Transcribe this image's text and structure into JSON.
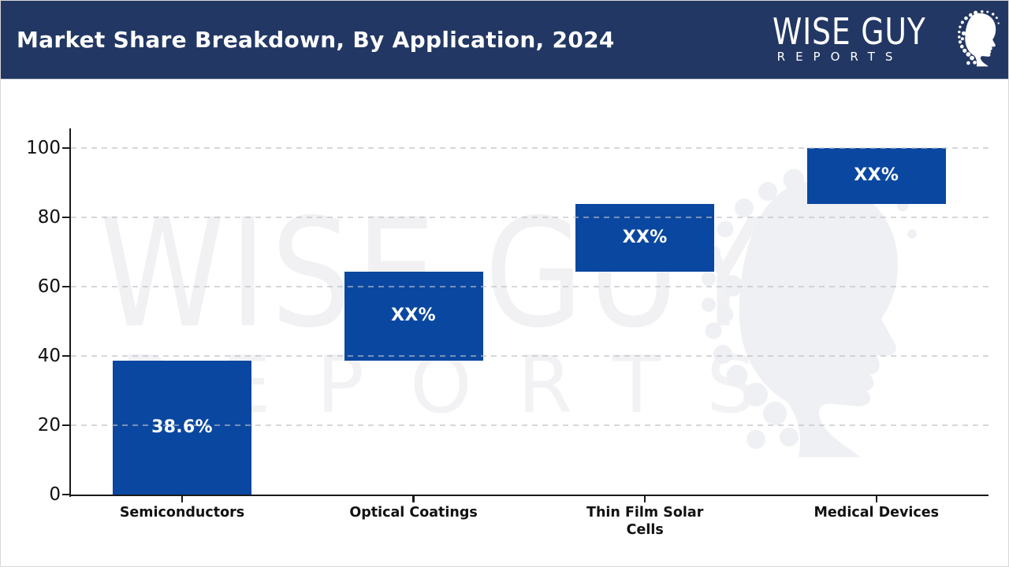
{
  "header": {
    "title": "Market Share Breakdown, By Application, 2024",
    "bg_color": "#223763",
    "logo": {
      "wordmark": "WISE GUY",
      "subtext": "REPORTS"
    }
  },
  "watermark": {
    "wordmark": "WISE GUY",
    "subtext": "REPORTS"
  },
  "chart_data": {
    "type": "bar",
    "variant": "waterfall",
    "title": "Market Share Breakdown, By Application, 2024",
    "categories": [
      "Semiconductors",
      "Optical Coatings",
      "Thin Film Solar Cells",
      "Medical Devices"
    ],
    "bars": [
      {
        "category": "Semiconductors",
        "start": 0,
        "end": 38.6,
        "label": "38.6%"
      },
      {
        "category": "Optical Coatings",
        "start": 38.6,
        "end": 64.4,
        "label": "XX%"
      },
      {
        "category": "Thin Film Solar Cells",
        "start": 64.4,
        "end": 83.9,
        "label": "XX%"
      },
      {
        "category": "Medical Devices",
        "start": 83.9,
        "end": 100,
        "label": "XX%"
      }
    ],
    "xlabel": "",
    "ylabel": "",
    "ylim": [
      0,
      100
    ],
    "yticks": [
      0,
      20,
      40,
      60,
      80,
      100
    ],
    "grid": "horizontal-dashed",
    "legend": "none",
    "bar_color": "#0a47a0",
    "bar_label_color": "#ffffff",
    "axis_color": "#1a1a1a",
    "grid_color": "#d9d9d9"
  }
}
